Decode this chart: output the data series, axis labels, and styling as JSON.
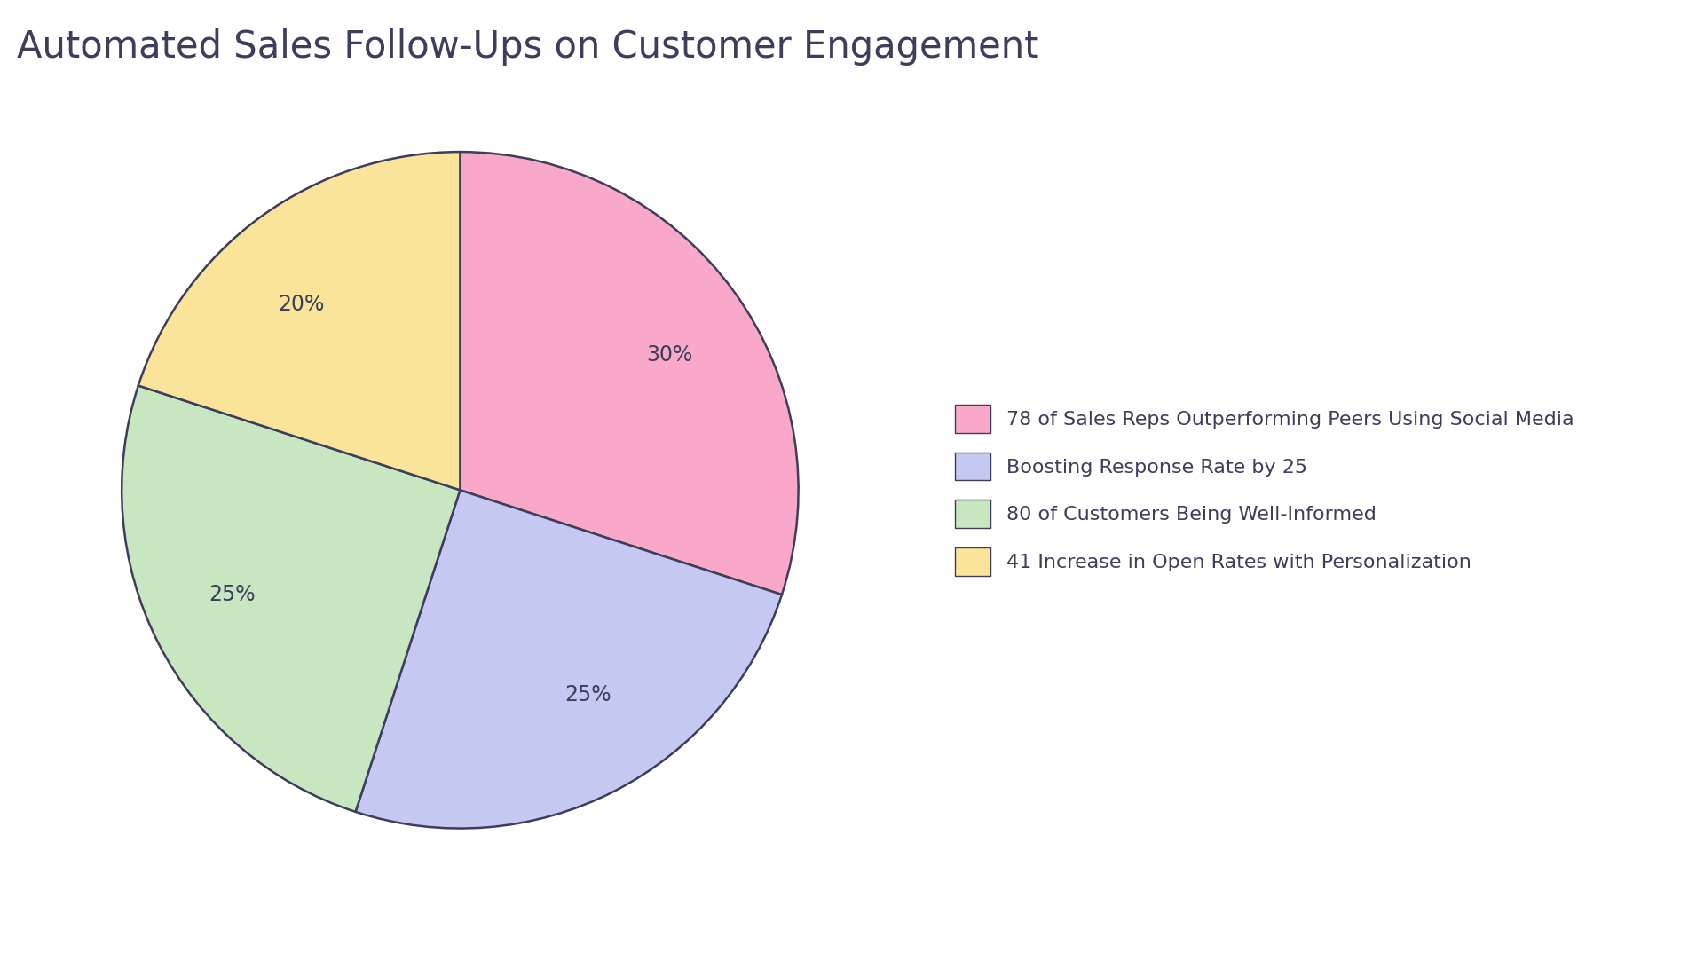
{
  "title": "Automated Sales Follow-Ups on Customer Engagement",
  "slices": [
    30,
    25,
    25,
    20
  ],
  "labels": [
    "30%",
    "25%",
    "25%",
    "20%"
  ],
  "colors": [
    "#F9A8C9",
    "#C5C8F0",
    "#C8E6C0",
    "#F9E49A"
  ],
  "legend_labels": [
    "78 of Sales Reps Outperforming Peers Using Social Media",
    "Boosting Response Rate by 25",
    "80 of Customers Being Well-Informed",
    "41 Increase in Open Rates with Personalization"
  ],
  "edge_color": "#3d3d5c",
  "edge_width": 1.8,
  "title_fontsize": 30,
  "label_fontsize": 17,
  "legend_fontsize": 16,
  "background_color": "#ffffff",
  "text_color": "#3d3d5c",
  "startangle": 90
}
